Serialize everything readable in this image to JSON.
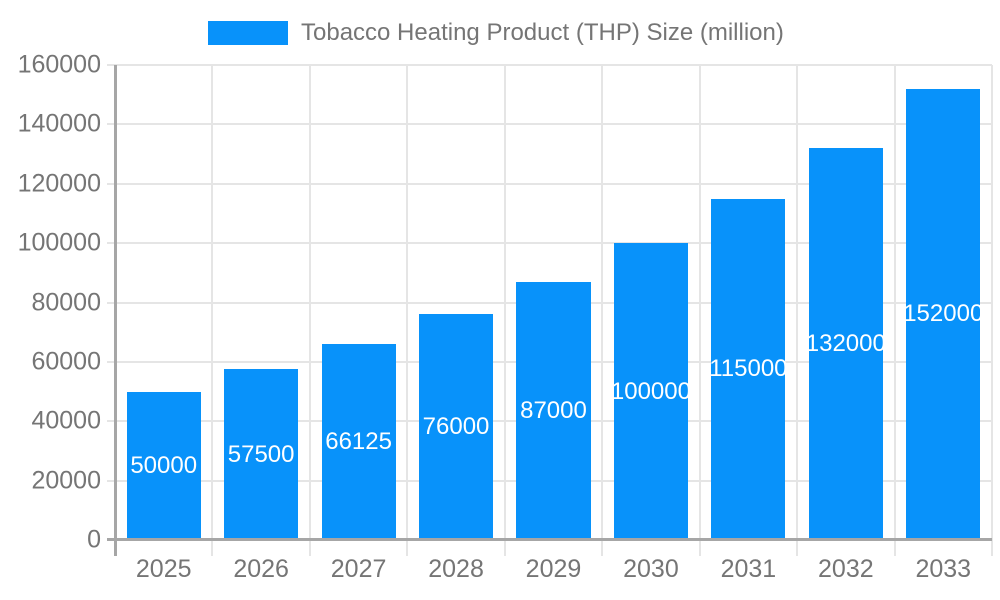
{
  "chart_data": {
    "type": "bar",
    "title": "Tobacco Heating Product (THP) Size (million)",
    "categories": [
      "2025",
      "2026",
      "2027",
      "2028",
      "2029",
      "2030",
      "2031",
      "2032",
      "2033"
    ],
    "values": [
      50000,
      57500,
      66125,
      76000,
      87000,
      100000,
      115000,
      132000,
      152000
    ],
    "bar_value_labels": [
      "50000",
      "57500",
      "66125",
      "76000",
      "87000",
      "100000",
      "115000",
      "132000",
      "152000"
    ],
    "xlabel": "",
    "ylabel": "",
    "ylim": [
      0,
      160000
    ],
    "yticks": [
      0,
      20000,
      40000,
      60000,
      80000,
      100000,
      120000,
      140000,
      160000
    ],
    "ytick_labels": [
      "0",
      "20000",
      "40000",
      "60000",
      "80000",
      "100000",
      "120000",
      "140000",
      "160000"
    ],
    "legend_position": "top",
    "grid": true,
    "colors": {
      "bar": "#0892fa",
      "axis_line": "#a6a6a6",
      "gridline": "#e5e5e5",
      "tick_text": "#757575",
      "bar_label_text": "#ffffff",
      "background": "#ffffff"
    }
  }
}
